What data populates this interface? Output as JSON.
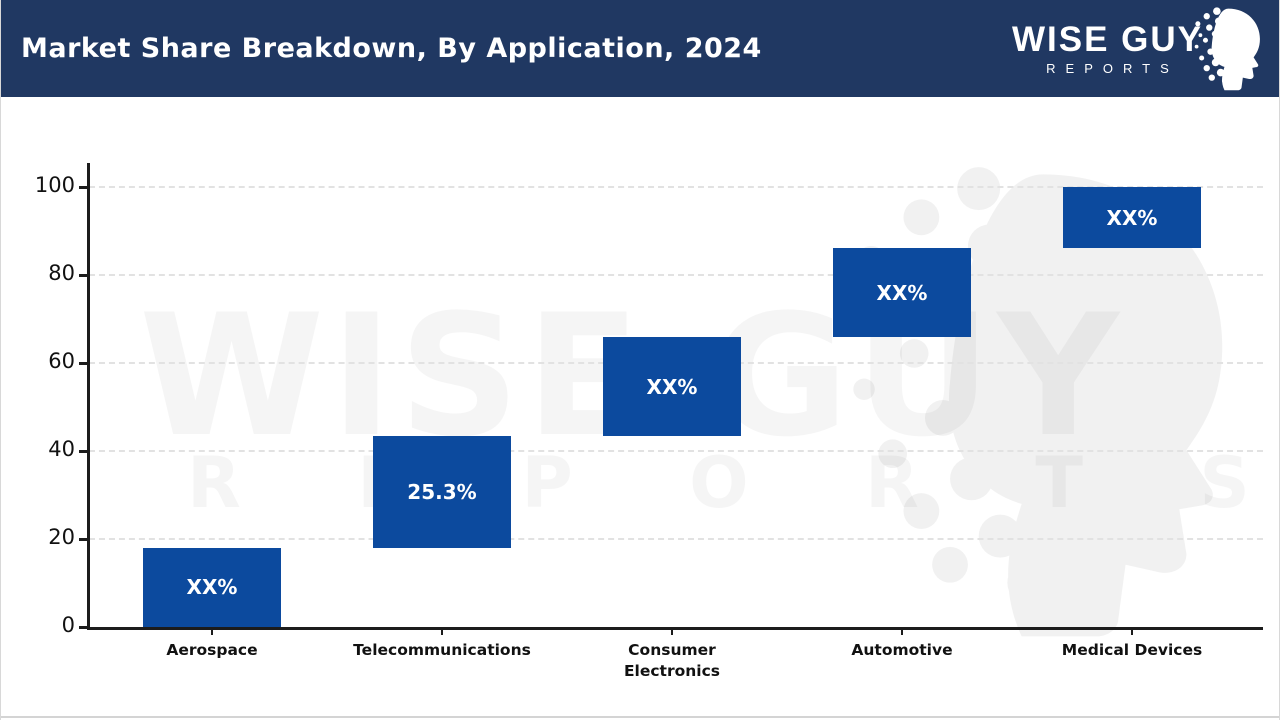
{
  "header": {
    "title": "Market Share Breakdown, By Application, 2024",
    "logo": {
      "line1": "WISE GUY",
      "line2": "REPORTS"
    }
  },
  "watermark": {
    "line1": "WISE GUY",
    "line2": "R E P O R T S"
  },
  "colors": {
    "header_bg": "#203862",
    "bar": "#0c4a9e",
    "grid": "#e2e2e2",
    "axis": "#1c1c1c",
    "bar_label": "#ffffff"
  },
  "chart_data": {
    "type": "bar",
    "subtype": "waterfall",
    "title": "Market Share Breakdown, By Application, 2024",
    "categories": [
      "Aerospace",
      "Telecommunications",
      "Consumer Electronics",
      "Automotive",
      "Medical Devices"
    ],
    "category_lines": [
      [
        "Aerospace"
      ],
      [
        "Telecommunications"
      ],
      [
        "Consumer",
        "Electronics"
      ],
      [
        "Automotive"
      ],
      [
        "Medical Devices"
      ]
    ],
    "segments": [
      {
        "category": "Aerospace",
        "label": "XX%",
        "start": 0,
        "end": 18.0
      },
      {
        "category": "Telecommunications",
        "label": "25.3%",
        "start": 18.0,
        "end": 43.3
      },
      {
        "category": "Consumer Electronics",
        "label": "XX%",
        "start": 43.3,
        "end": 65.9
      },
      {
        "category": "Automotive",
        "label": "XX%",
        "start": 65.9,
        "end": 86.1
      },
      {
        "category": "Medical Devices",
        "label": "XX%",
        "start": 86.1,
        "end": 100.0
      }
    ],
    "yticks": [
      0,
      20,
      40,
      60,
      80,
      100
    ],
    "ylim": [
      0,
      100
    ],
    "grid": "horizontal-dashed",
    "legend": "none",
    "xlabel": "",
    "ylabel": ""
  }
}
